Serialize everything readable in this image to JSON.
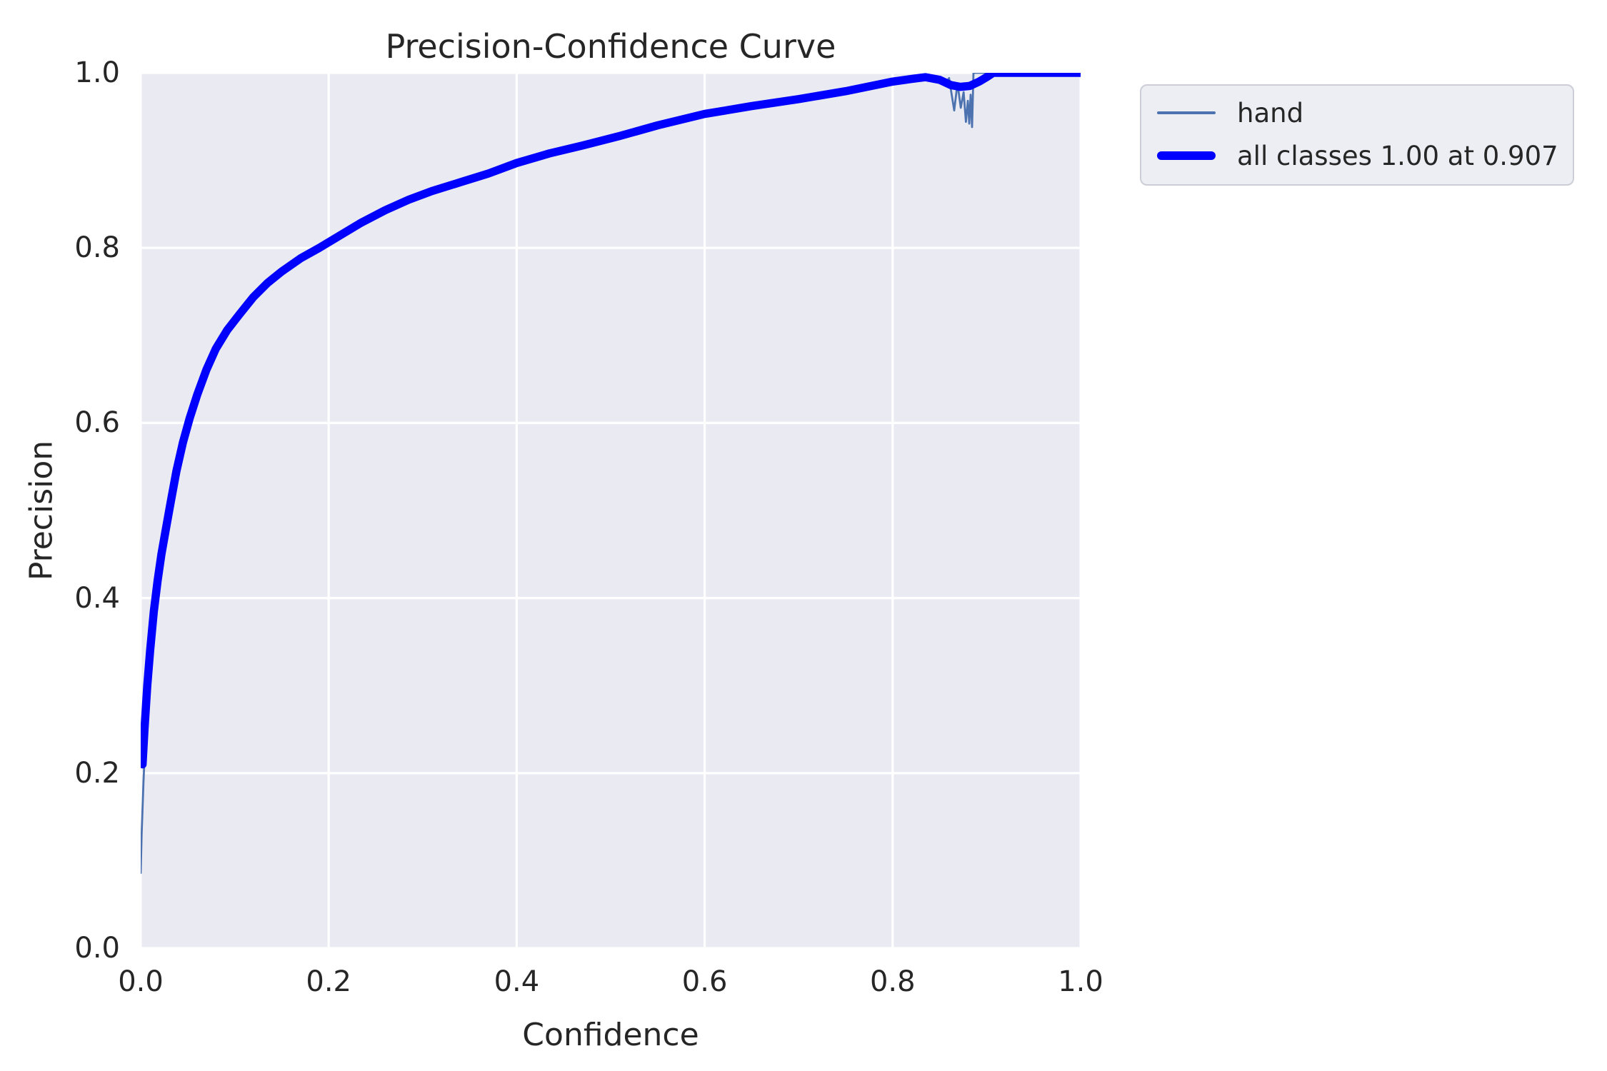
{
  "chart_data": {
    "type": "line",
    "title": "Precision-Confidence Curve",
    "xlabel": "Confidence",
    "ylabel": "Precision",
    "xlim": [
      0.0,
      1.0
    ],
    "ylim": [
      0.0,
      1.0
    ],
    "grid": true,
    "plot_bg_color": "#EAEAF2",
    "grid_color": "#FFFFFF",
    "text_color": "#262626",
    "legend_position": "outside upper right",
    "x_ticks": [
      0.0,
      0.2,
      0.4,
      0.6,
      0.8,
      1.0
    ],
    "x_tick_labels": [
      "0.0",
      "0.2",
      "0.4",
      "0.6",
      "0.8",
      "1.0"
    ],
    "y_ticks": [
      0.0,
      0.2,
      0.4,
      0.6,
      0.8,
      1.0
    ],
    "y_tick_labels": [
      "0.0",
      "0.2",
      "0.4",
      "0.6",
      "0.8",
      "1.0"
    ],
    "series": [
      {
        "name": "hand",
        "color": "#4C72B0",
        "line_width": 2.8,
        "points": [
          [
            0.0,
            0.086
          ],
          [
            0.001,
            0.13
          ],
          [
            0.003,
            0.19
          ],
          [
            0.005,
            0.24
          ],
          [
            0.008,
            0.29
          ],
          [
            0.012,
            0.34
          ],
          [
            0.016,
            0.39
          ],
          [
            0.021,
            0.435
          ],
          [
            0.026,
            0.472
          ],
          [
            0.032,
            0.508
          ],
          [
            0.04,
            0.548
          ],
          [
            0.048,
            0.582
          ],
          [
            0.056,
            0.612
          ],
          [
            0.066,
            0.645
          ],
          [
            0.078,
            0.678
          ],
          [
            0.092,
            0.705
          ],
          [
            0.108,
            0.727
          ],
          [
            0.125,
            0.748
          ],
          [
            0.142,
            0.764
          ],
          [
            0.162,
            0.782
          ],
          [
            0.185,
            0.797
          ],
          [
            0.21,
            0.814
          ],
          [
            0.238,
            0.83
          ],
          [
            0.265,
            0.845
          ],
          [
            0.292,
            0.857
          ],
          [
            0.32,
            0.868
          ],
          [
            0.355,
            0.88
          ],
          [
            0.395,
            0.895
          ],
          [
            0.435,
            0.908
          ],
          [
            0.475,
            0.918
          ],
          [
            0.515,
            0.929
          ],
          [
            0.555,
            0.941
          ],
          [
            0.605,
            0.954
          ],
          [
            0.655,
            0.963
          ],
          [
            0.705,
            0.971
          ],
          [
            0.755,
            0.98
          ],
          [
            0.805,
            0.991
          ],
          [
            0.825,
            0.994
          ],
          [
            0.845,
            0.992
          ],
          [
            0.856,
            0.988
          ],
          [
            0.86,
            0.994
          ],
          [
            0.8655,
            0.957
          ],
          [
            0.869,
            0.988
          ],
          [
            0.8725,
            0.96
          ],
          [
            0.8755,
            0.978
          ],
          [
            0.878,
            0.944
          ],
          [
            0.88,
            0.968
          ],
          [
            0.8815,
            0.942
          ],
          [
            0.883,
            0.975
          ],
          [
            0.8845,
            0.938
          ],
          [
            0.886,
            1.0
          ],
          [
            1.0,
            1.0
          ]
        ]
      },
      {
        "name": "all classes 1.00 at 0.907",
        "color": "#0000FF",
        "line_width": 11.5,
        "points": [
          [
            0.002,
            0.21
          ],
          [
            0.004,
            0.25
          ],
          [
            0.007,
            0.3
          ],
          [
            0.01,
            0.34
          ],
          [
            0.014,
            0.385
          ],
          [
            0.018,
            0.42
          ],
          [
            0.022,
            0.45
          ],
          [
            0.027,
            0.48
          ],
          [
            0.032,
            0.51
          ],
          [
            0.038,
            0.545
          ],
          [
            0.045,
            0.578
          ],
          [
            0.052,
            0.605
          ],
          [
            0.06,
            0.632
          ],
          [
            0.07,
            0.661
          ],
          [
            0.08,
            0.685
          ],
          [
            0.092,
            0.706
          ],
          [
            0.105,
            0.724
          ],
          [
            0.12,
            0.744
          ],
          [
            0.135,
            0.76
          ],
          [
            0.15,
            0.773
          ],
          [
            0.17,
            0.788
          ],
          [
            0.19,
            0.8
          ],
          [
            0.21,
            0.813
          ],
          [
            0.235,
            0.829
          ],
          [
            0.26,
            0.843
          ],
          [
            0.285,
            0.855
          ],
          [
            0.31,
            0.865
          ],
          [
            0.34,
            0.875
          ],
          [
            0.37,
            0.885
          ],
          [
            0.4,
            0.897
          ],
          [
            0.435,
            0.908
          ],
          [
            0.47,
            0.917
          ],
          [
            0.51,
            0.928
          ],
          [
            0.55,
            0.94
          ],
          [
            0.6,
            0.953
          ],
          [
            0.65,
            0.962
          ],
          [
            0.7,
            0.97
          ],
          [
            0.75,
            0.979
          ],
          [
            0.8,
            0.99
          ],
          [
            0.82,
            0.993
          ],
          [
            0.835,
            0.995
          ],
          [
            0.85,
            0.992
          ],
          [
            0.862,
            0.986
          ],
          [
            0.872,
            0.984
          ],
          [
            0.882,
            0.985
          ],
          [
            0.892,
            0.99
          ],
          [
            0.9,
            0.995
          ],
          [
            0.907,
            1.0
          ],
          [
            1.0,
            1.0
          ]
        ]
      }
    ],
    "legend_entries": [
      "hand",
      "all classes 1.00 at 0.907"
    ]
  }
}
